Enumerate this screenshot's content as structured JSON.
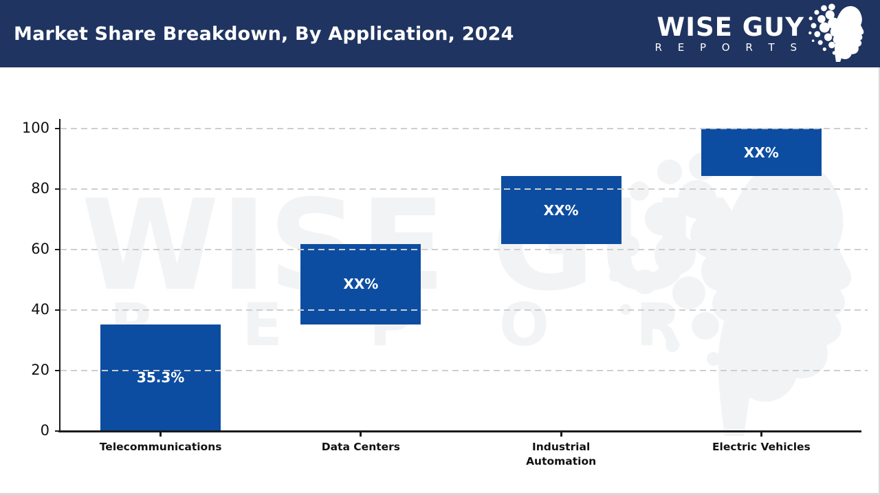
{
  "header": {
    "title": "Market Share Breakdown, By Application, 2024",
    "bg_color": "#1f3460",
    "logo": {
      "name": "WISE GUY",
      "sub": "R E P O R T S"
    }
  },
  "watermark": {
    "word": "WISE GUY",
    "sub": "R E P O R T S",
    "color": "#f2f3f5"
  },
  "chart_data": {
    "type": "bar",
    "subtype": "waterfall",
    "title": "Market Share Breakdown, By Application, 2024",
    "categories": [
      "Telecommunications",
      "Data Centers",
      "Industrial\nAutomation",
      "Electric Vehicles"
    ],
    "segments": [
      {
        "category": "Telecommunications",
        "start": 0,
        "end": 35.3,
        "label": "35.3%"
      },
      {
        "category": "Data Centers",
        "start": 35.3,
        "end": 61.8,
        "label": "XX%"
      },
      {
        "category": "Industrial Automation",
        "start": 61.8,
        "end": 84.3,
        "label": "XX%"
      },
      {
        "category": "Electric Vehicles",
        "start": 84.3,
        "end": 100,
        "label": "XX%"
      }
    ],
    "yticks": [
      0,
      20,
      40,
      60,
      80,
      100
    ],
    "ylim": [
      0,
      100
    ],
    "xlabel": "",
    "ylabel": "",
    "legend": "none",
    "grid": "horizontal dashed, drawn over bars",
    "bar_color": "#0d4da1",
    "bar_label_color": "#ffffff",
    "gridline_color": "#cecece",
    "axis_color": "#1a1a1a"
  },
  "frame": {
    "edge_color": "#d9d9d9"
  }
}
